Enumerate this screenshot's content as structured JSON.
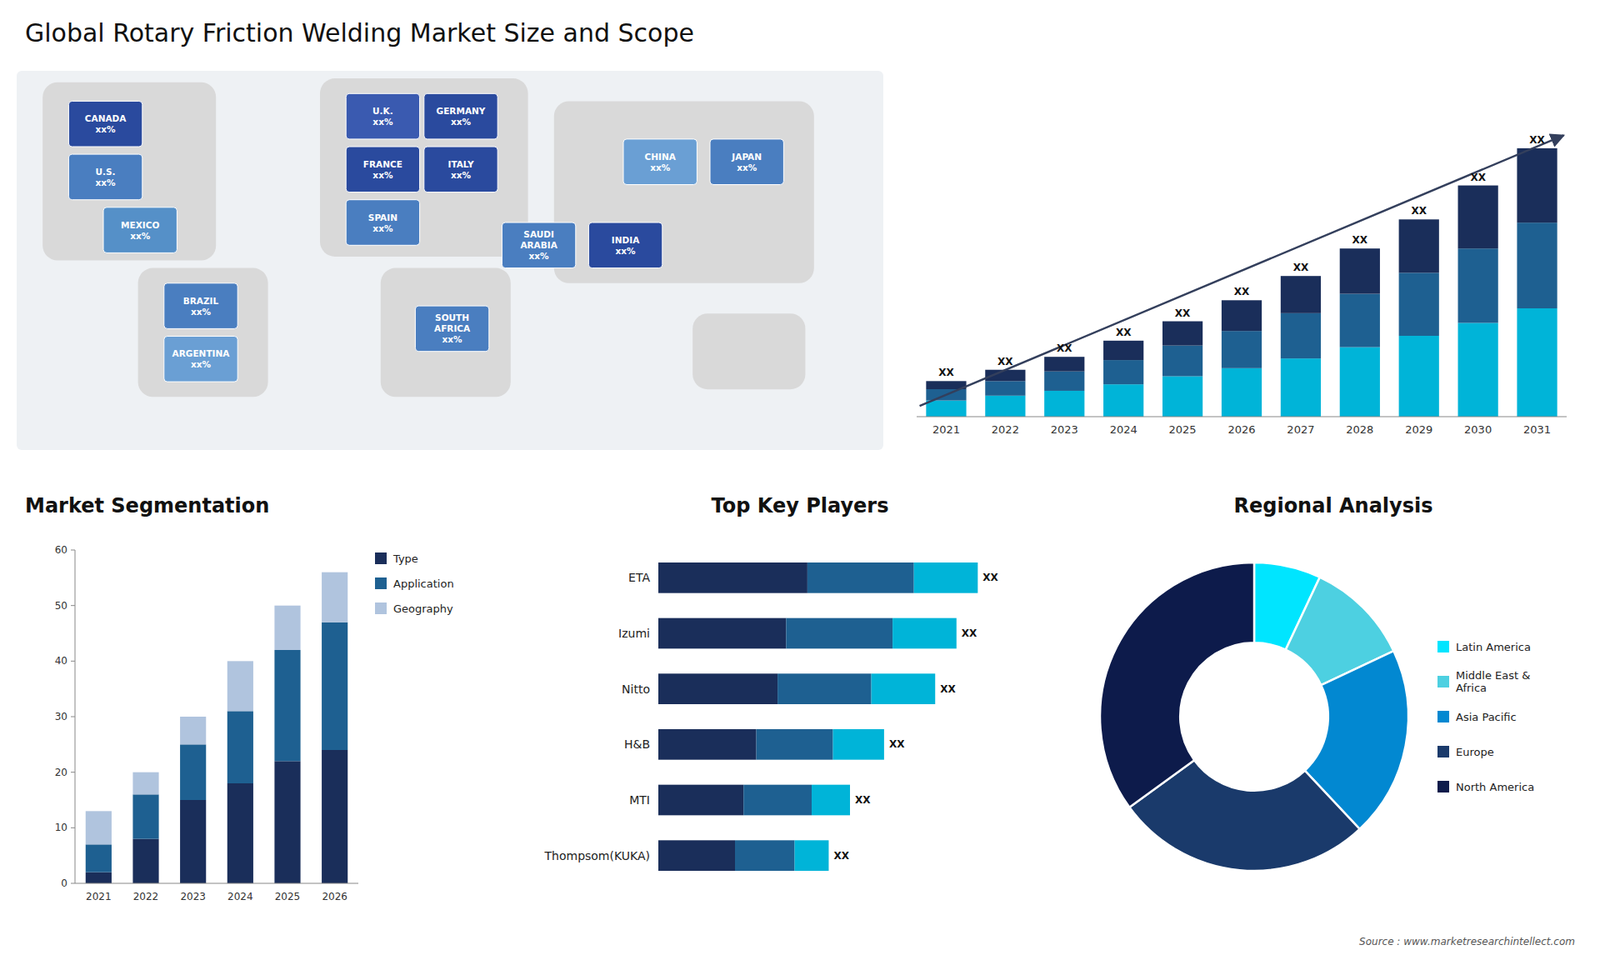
{
  "chart_data": [
    {
      "type": "map",
      "title": "Global Rotary Friction Welding Market Size and Scope",
      "categories": [
        "CANADA\nxx%",
        "U.S.\nxx%",
        "MEXICO\nxx%",
        "BRAZIL\nxx%",
        "ARGENTINA\nxx%",
        "U.K.\nxx%",
        "FRANCE\nxx%",
        "SPAIN\nxx%",
        "GERMANY\nxx%",
        "ITALY\nxx%",
        "SAUDI\nARABIA\nxx%",
        "SOUTH\nAFRICA\nxx%",
        "CHINA\nxx%",
        "JAPAN\nxx%",
        "INDIA\nxx%"
      ],
      "colors": [
        "#2a4a9e",
        "#4a7ec0",
        "#5590c8",
        "#4a7ec0",
        "#6a9fd4",
        "#3a5ab0",
        "#2a4a9e",
        "#4a7ec0",
        "#2a4a9e",
        "#2a4a9e",
        "#4a7ec0",
        "#4a7ec0",
        "#6a9fd4",
        "#4a7ec0",
        "#2a4a9e"
      ],
      "annotations": [
        "Source : www.marketresearchintellect.com"
      ]
    },
    {
      "type": "bar",
      "stacked": true,
      "categories": [
        "2021",
        "2022",
        "2023",
        "2024",
        "2025",
        "2026",
        "2027",
        "2028",
        "2029",
        "2030",
        "2031"
      ],
      "series": [
        {
          "color": "#00b4d8",
          "values": [
            1.0,
            1.3,
            1.6,
            2.0,
            2.5,
            3.0,
            3.6,
            4.3,
            5.0,
            5.8,
            6.7
          ]
        },
        {
          "color": "#1e6091",
          "values": [
            0.7,
            0.9,
            1.2,
            1.5,
            1.9,
            2.3,
            2.8,
            3.3,
            3.9,
            4.6,
            5.3
          ]
        },
        {
          "color": "#1a2e5a",
          "values": [
            0.5,
            0.7,
            0.9,
            1.2,
            1.5,
            1.9,
            2.3,
            2.8,
            3.3,
            3.9,
            4.6
          ]
        }
      ],
      "annotations": [
        "XX",
        "XX",
        "XX",
        "XX",
        "XX",
        "XX",
        "XX",
        "XX",
        "XX",
        "XX",
        "XX"
      ],
      "ylim": [
        0,
        20.1
      ],
      "tick_labels": "x",
      "grid": false
    },
    {
      "type": "bar",
      "stacked": true,
      "title": "Market Segmentation",
      "categories": [
        "2021",
        "2022",
        "2023",
        "2024",
        "2025",
        "2026"
      ],
      "series": [
        {
          "name": "Type",
          "color": "#1a2e5a",
          "values": [
            2,
            8,
            15,
            18,
            22,
            24
          ]
        },
        {
          "name": "Application",
          "color": "#1e6091",
          "values": [
            5,
            8,
            10,
            13,
            20,
            23
          ]
        },
        {
          "name": "Geography",
          "color": "#b0c4de",
          "values": [
            6,
            4,
            5,
            9,
            8,
            9
          ]
        }
      ],
      "ylim": [
        0,
        60
      ],
      "yticks": [
        0,
        10,
        20,
        30,
        40,
        50,
        60
      ],
      "legend": "upper right",
      "grid": false
    },
    {
      "type": "bar",
      "stacked": true,
      "orientation": "horizontal",
      "title": "Top Key Players",
      "categories": [
        "ETA",
        "Izumi",
        "Nitto",
        "H&B",
        "MTI",
        "Thompsom(KUKA)"
      ],
      "series": [
        {
          "color": "#1a2e5a",
          "values": [
            3.5,
            3.0,
            2.8,
            2.3,
            2.0,
            1.8
          ]
        },
        {
          "color": "#1e6091",
          "values": [
            2.5,
            2.5,
            2.2,
            1.8,
            1.6,
            1.4
          ]
        },
        {
          "color": "#00b4d8",
          "values": [
            1.5,
            1.5,
            1.5,
            1.2,
            0.9,
            0.8
          ]
        }
      ],
      "annotations": [
        "XX",
        "XX",
        "XX",
        "XX",
        "XX",
        "XX"
      ],
      "xlim": [
        0,
        9.0
      ],
      "tick_labels": "y",
      "grid": false
    },
    {
      "type": "donut",
      "title": "Regional Analysis",
      "categories": [
        "Latin America",
        "Middle East &\nAfrica",
        "Asia Pacific",
        "Europe",
        "North America"
      ],
      "values": [
        7,
        11,
        20,
        27,
        35
      ],
      "colors": [
        "#00e5ff",
        "#4dd0e1",
        "#0288d1",
        "#1a3a6b",
        "#0d1b4b"
      ],
      "legend": "right"
    }
  ]
}
